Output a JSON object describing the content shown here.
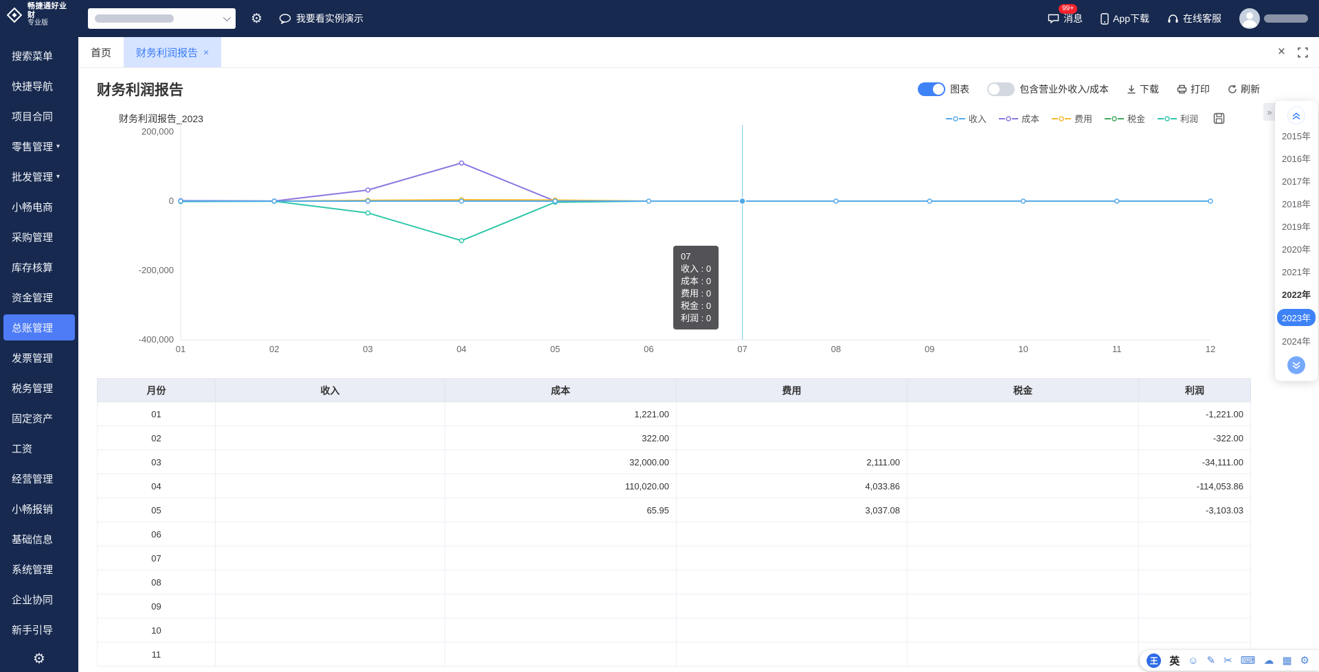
{
  "brand": {
    "name": "畅捷通好业财",
    "edition": "专业版"
  },
  "topbar": {
    "demo": "我要看实例演示",
    "messages": "消息",
    "messages_badge": "99+",
    "app_download": "App下载",
    "service": "在线客服"
  },
  "sidebar": {
    "items": [
      {
        "label": "搜索菜单"
      },
      {
        "label": "快捷导航"
      },
      {
        "label": "项目合同"
      },
      {
        "label": "零售管理",
        "caret": true
      },
      {
        "label": "批发管理",
        "caret": true
      },
      {
        "label": "小畅电商"
      },
      {
        "label": "采购管理"
      },
      {
        "label": "库存核算"
      },
      {
        "label": "资金管理"
      },
      {
        "label": "总账管理",
        "active": true
      },
      {
        "label": "发票管理"
      },
      {
        "label": "税务管理"
      },
      {
        "label": "固定资产"
      },
      {
        "label": "工资"
      },
      {
        "label": "经营管理"
      },
      {
        "label": "小畅报销"
      },
      {
        "label": "基础信息"
      },
      {
        "label": "系统管理"
      },
      {
        "label": "企业协同"
      },
      {
        "label": "新手引导"
      }
    ]
  },
  "tabs": [
    {
      "label": "首页",
      "active": false,
      "closable": false
    },
    {
      "label": "财务利润报告",
      "active": true,
      "closable": true
    }
  ],
  "page": {
    "title": "财务利润报告",
    "chart_toggle_label": "图表",
    "chart_toggle_on": true,
    "nonop_toggle_label": "包含营业外收入/成本",
    "nonop_toggle_on": false,
    "download_label": "下载",
    "print_label": "打印",
    "refresh_label": "刷新"
  },
  "chart_data": {
    "type": "line",
    "title": "财务利润报告_2023",
    "x": [
      "01",
      "02",
      "03",
      "04",
      "05",
      "06",
      "07",
      "08",
      "09",
      "10",
      "11",
      "12"
    ],
    "ylim": [
      -400000,
      200000
    ],
    "yticks": [
      {
        "value": 200000,
        "label": "200,000"
      },
      {
        "value": 0,
        "label": "0"
      },
      {
        "value": -200000,
        "label": "-200,000"
      },
      {
        "value": -400000,
        "label": "-400,000"
      }
    ],
    "series": [
      {
        "name": "收入",
        "color": "#54A8E8",
        "values": [
          0,
          0,
          0,
          0,
          0,
          0,
          0,
          0,
          0,
          0,
          0,
          0
        ],
        "markers": "all"
      },
      {
        "name": "成本",
        "color": "#8A75E0",
        "values": [
          1221,
          322,
          32000,
          110020,
          65.95,
          0,
          0,
          0,
          0,
          0,
          0,
          0
        ],
        "markers": "nonzero"
      },
      {
        "name": "费用",
        "color": "#F3BB2F",
        "values": [
          0,
          0,
          2111,
          4033.86,
          3037.08,
          0,
          0,
          0,
          0,
          0,
          0,
          0
        ],
        "markers": "nonzero"
      },
      {
        "name": "税金",
        "color": "#3FA95C",
        "values": [
          0,
          0,
          0,
          0,
          0,
          0,
          0,
          0,
          0,
          0,
          0,
          0
        ],
        "markers": "none"
      },
      {
        "name": "利润",
        "color": "#2EC7A9",
        "values": [
          -1221,
          -322,
          -34111,
          -114053.86,
          -3103.03,
          0,
          0,
          0,
          0,
          0,
          0,
          0
        ],
        "markers": "nonzero"
      }
    ],
    "legend_position": "top-right",
    "grid": false,
    "crosshair_month": "07"
  },
  "chart_tooltip": {
    "title": "07",
    "rows": [
      {
        "label": "收入",
        "value": "0"
      },
      {
        "label": "成本",
        "value": "0"
      },
      {
        "label": "费用",
        "value": "0"
      },
      {
        "label": "税金",
        "value": "0"
      },
      {
        "label": "利润",
        "value": "0"
      }
    ]
  },
  "table": {
    "columns": [
      "月份",
      "收入",
      "成本",
      "费用",
      "税金",
      "利润"
    ],
    "rows": [
      [
        "01",
        "",
        "1,221.00",
        "",
        "",
        "-1,221.00"
      ],
      [
        "02",
        "",
        "322.00",
        "",
        "",
        "-322.00"
      ],
      [
        "03",
        "",
        "32,000.00",
        "2,111.00",
        "",
        "-34,111.00"
      ],
      [
        "04",
        "",
        "110,020.00",
        "4,033.86",
        "",
        "-114,053.86"
      ],
      [
        "05",
        "",
        "65.95",
        "3,037.08",
        "",
        "-3,103.03"
      ],
      [
        "06",
        "",
        "",
        "",
        "",
        ""
      ],
      [
        "07",
        "",
        "",
        "",
        "",
        ""
      ],
      [
        "08",
        "",
        "",
        "",
        "",
        ""
      ],
      [
        "09",
        "",
        "",
        "",
        "",
        ""
      ],
      [
        "10",
        "",
        "",
        "",
        "",
        ""
      ],
      [
        "11",
        "",
        "",
        "",
        "",
        ""
      ]
    ]
  },
  "year_panel": {
    "years": [
      "2015年",
      "2016年",
      "2017年",
      "2018年",
      "2019年",
      "2020年",
      "2021年",
      "2022年",
      "2023年",
      "2024年"
    ],
    "active_year": "2023年",
    "highlight_year": "2022年",
    "collapse_glyph": "»"
  },
  "ime": {
    "logo": "王",
    "lang": "英",
    "icons": [
      {
        "name": "emoji-icon",
        "glyph": "☺"
      },
      {
        "name": "pen-icon",
        "glyph": "✎"
      },
      {
        "name": "scissors-icon",
        "glyph": "✂"
      },
      {
        "name": "keyboard-icon",
        "glyph": "⌨"
      },
      {
        "name": "cloud-icon",
        "glyph": "☁"
      },
      {
        "name": "grid-icon",
        "glyph": "▦"
      },
      {
        "name": "gear-icon",
        "glyph": "⚙"
      }
    ]
  }
}
